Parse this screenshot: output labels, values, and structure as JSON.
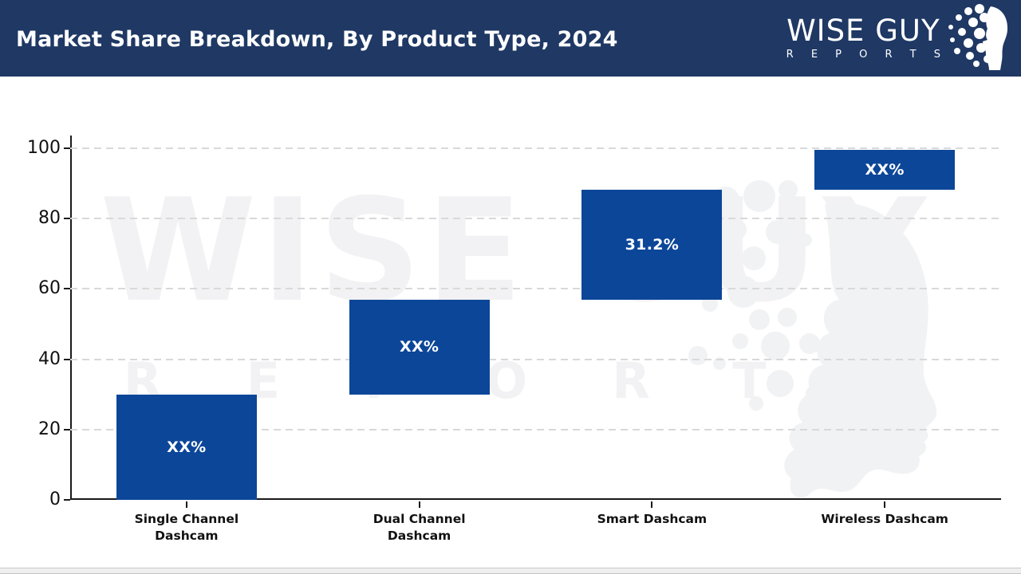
{
  "header": {
    "title": "Market Share Breakdown, By Product Type, 2024",
    "logo": {
      "wordmark": "WISE GUY",
      "subtext": "R E P O R T S"
    }
  },
  "watermark": {
    "line1": "WISE GUY",
    "line2": "REPORTS"
  },
  "chart_data": {
    "type": "bar",
    "subtype": "floating-segment-waterfall",
    "title": "Market Share Breakdown, By Product Type, 2024",
    "categories": [
      "Single Channel\nDashcam",
      "Dual Channel\nDashcam",
      "Smart Dashcam",
      "Wireless Dashcam"
    ],
    "series": [
      {
        "name": "Market share (%)",
        "segments": [
          {
            "category": "Single Channel Dashcam",
            "start": 0,
            "end": 30,
            "value_label": "XX%"
          },
          {
            "category": "Dual Channel Dashcam",
            "start": 30,
            "end": 57,
            "value_label": "XX%"
          },
          {
            "category": "Smart Dashcam",
            "start": 57,
            "end": 88.2,
            "value": 31.2,
            "value_label": "31.2%"
          },
          {
            "category": "Wireless Dashcam",
            "start": 88.2,
            "end": 99.6,
            "value_label": "XX%"
          }
        ]
      }
    ],
    "xlabel": "",
    "ylabel": "",
    "ylim": [
      0,
      100
    ],
    "yticks": [
      0,
      20,
      40,
      60,
      80,
      100
    ],
    "grid": "horizontal-dashed",
    "legend": "none"
  },
  "colors": {
    "header_bg": "#1f3864",
    "bar": "#0c4699",
    "axis": "#1a1a1a",
    "gridline": "#d9d9d9",
    "value_label": "#ffffff",
    "tick_label": "#111111",
    "watermark": "#f2f2f4"
  }
}
